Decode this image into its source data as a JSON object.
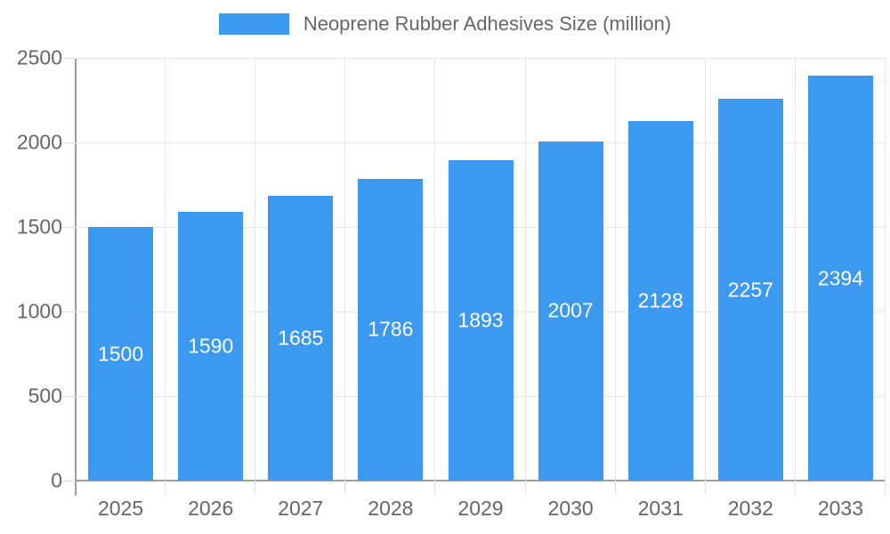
{
  "legend": {
    "label": "Neoprene Rubber Adhesives Size (million)"
  },
  "chart_data": {
    "type": "bar",
    "title": "Neoprene Rubber Adhesives Size (million)",
    "categories": [
      "2025",
      "2026",
      "2027",
      "2028",
      "2029",
      "2030",
      "2031",
      "2032",
      "2033"
    ],
    "values": [
      1500,
      1590,
      1685,
      1786,
      1893,
      2007,
      2128,
      2257,
      2394
    ],
    "xlabel": "",
    "ylabel": "",
    "ylim": [
      0,
      2500
    ],
    "y_ticks": [
      0,
      500,
      1000,
      1500,
      2000,
      2500
    ],
    "grid": true,
    "legend_position": "top",
    "value_labels": "inside-center",
    "colors": {
      "bar": "#3b99ef",
      "value_label": "#ffffff",
      "grid": "#e6e6e6",
      "axis": "#9e9e9e",
      "tick_text": "#666666",
      "legend_text": "#666666",
      "background": "#ffffff"
    }
  }
}
